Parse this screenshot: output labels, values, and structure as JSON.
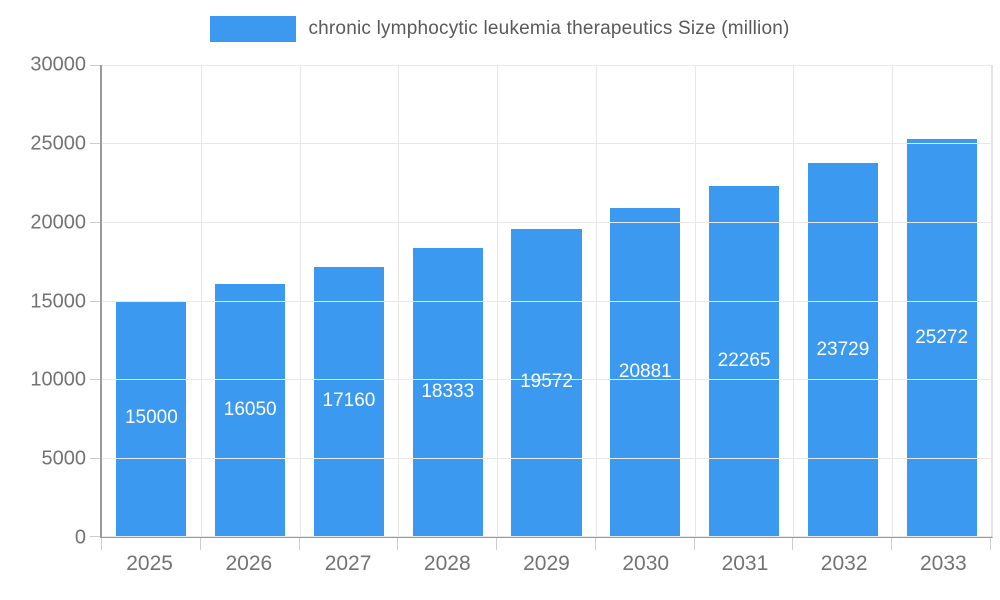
{
  "legend": {
    "label": "chronic lymphocytic leukemia therapeutics Size (million)"
  },
  "chart_data": {
    "type": "bar",
    "title": "chronic lymphocytic leukemia therapeutics Size (million)",
    "series_name": "chronic lymphocytic leukemia therapeutics Size (million)",
    "categories": [
      "2025",
      "2026",
      "2027",
      "2028",
      "2029",
      "2030",
      "2031",
      "2032",
      "2033"
    ],
    "values": [
      15000,
      16050,
      17160,
      18333,
      19572,
      20881,
      22265,
      23729,
      25272
    ],
    "xlabel": "",
    "ylabel": "",
    "ylim": [
      0,
      30000
    ],
    "y_ticks": [
      0,
      5000,
      10000,
      15000,
      20000,
      25000,
      30000
    ],
    "grid": true,
    "legend_position": "top",
    "data_labels_inside_bars": true
  },
  "colors": {
    "bar_fill": "#3B99F0",
    "bar_label_text": "#ffffff",
    "axis_line": "#9a9a9a",
    "gridline": "#e8e8e8",
    "tick_mark": "#cccccc",
    "tick_label_text": "#737373",
    "legend_text": "#595959",
    "background": "#ffffff"
  }
}
